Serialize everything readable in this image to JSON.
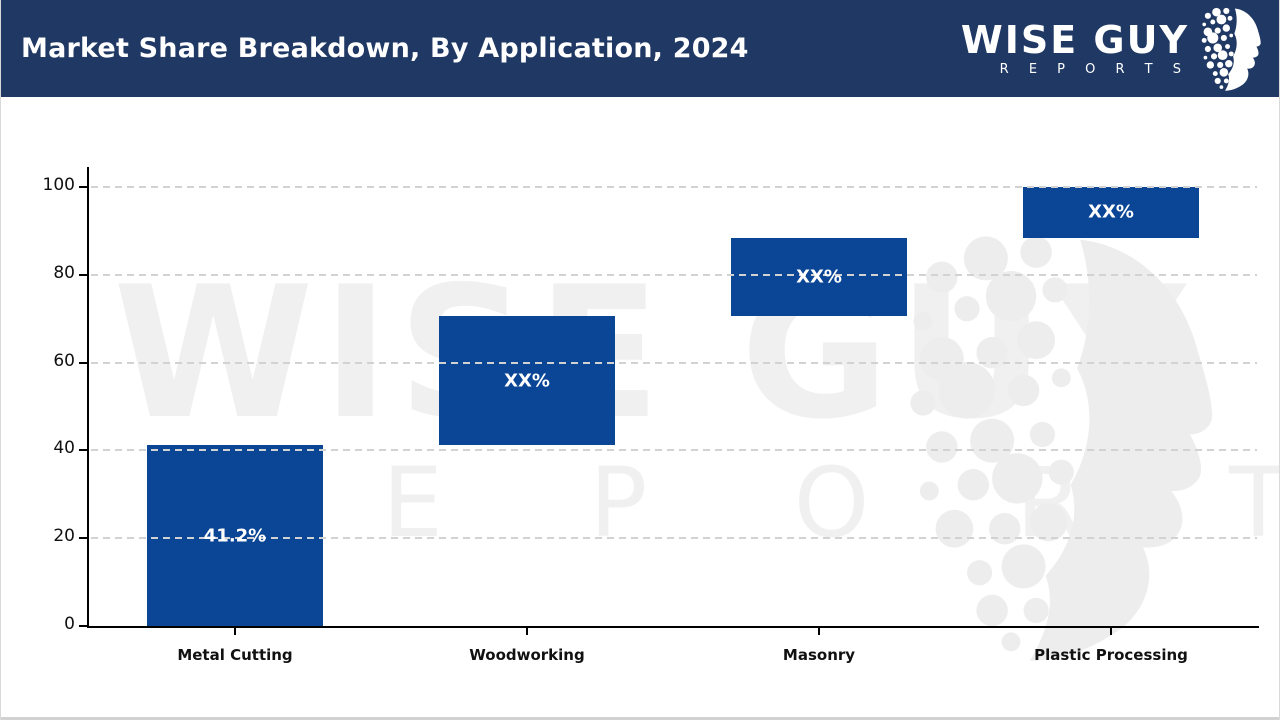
{
  "header": {
    "title": "Market Share Breakdown, By Application, 2024"
  },
  "logo": {
    "line1": "WISE GUY",
    "line2": "R E P O R T S",
    "icon": "face-dots-icon"
  },
  "watermark": {
    "line1": "WISE GUY",
    "line2": "R E P O R T S"
  },
  "colors": {
    "header_bg": "#1f3864",
    "bar": "#0a4596",
    "bar_label": "#ffffff",
    "gridline": "#d2d2d2",
    "axis": "#000000",
    "watermark": "#f0f0f0",
    "bottom_border": "#d2d2d2"
  },
  "chart_data": {
    "type": "bar",
    "subtype": "waterfall",
    "title": "Market Share Breakdown, By Application, 2024",
    "categories": [
      "Metal Cutting",
      "Woodworking",
      "Masonry",
      "Plastic Processing"
    ],
    "segments": [
      {
        "category": "Metal Cutting",
        "start": 0,
        "end": 41.2,
        "label": "41.2%"
      },
      {
        "category": "Woodworking",
        "start": 41.2,
        "end": 70.6,
        "label": "XX%"
      },
      {
        "category": "Masonry",
        "start": 70.6,
        "end": 88.4,
        "label": "XX%"
      },
      {
        "category": "Plastic Processing",
        "start": 88.4,
        "end": 100,
        "label": "XX%"
      }
    ],
    "xlabel": "",
    "ylabel": "",
    "ylim": [
      0,
      100
    ],
    "yticks": [
      0,
      20,
      40,
      60,
      80,
      100
    ],
    "grid": "horizontal dashed gridlines drawn above bars",
    "legend": "none"
  }
}
